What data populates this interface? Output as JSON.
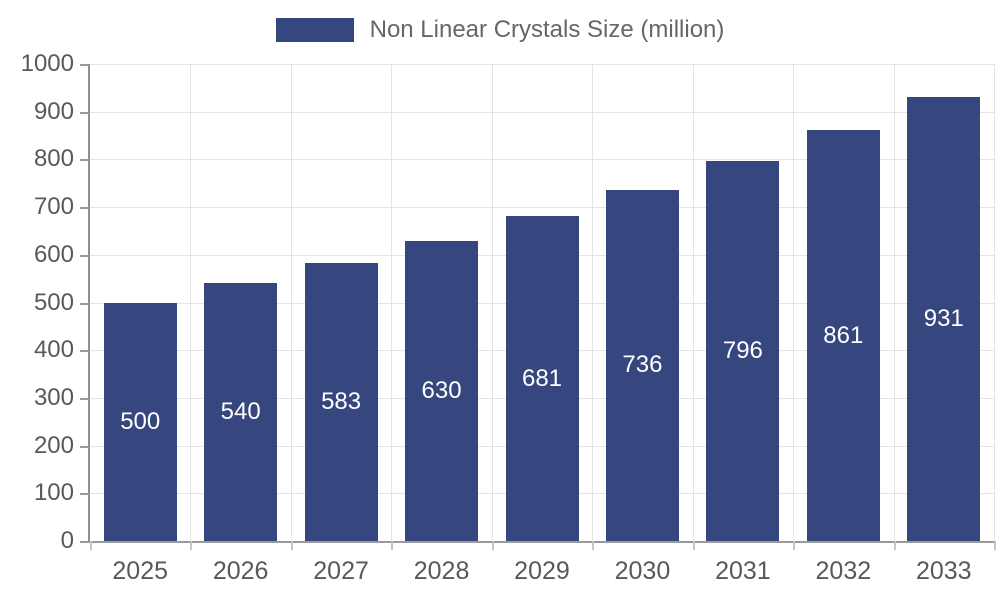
{
  "chart_data": {
    "type": "bar",
    "title": "Non Linear Crystals Size (million)",
    "legend_entries": [
      "Non Linear Crystals Size (million)"
    ],
    "legend_position": "top-center",
    "categories": [
      "2025",
      "2026",
      "2027",
      "2028",
      "2029",
      "2030",
      "2031",
      "2032",
      "2033"
    ],
    "series": [
      {
        "name": "Non Linear Crystals Size (million)",
        "values": [
          500,
          540,
          583,
          630,
          681,
          736,
          796,
          861,
          931
        ]
      }
    ],
    "bar_labels_visible": true,
    "xlabel": "",
    "ylabel": "",
    "ylim": [
      0,
      1000
    ],
    "y_ticks": [
      0,
      100,
      200,
      300,
      400,
      500,
      600,
      700,
      800,
      900,
      1000
    ],
    "grid": "horizontal-and-vertical",
    "colors": {
      "bar": "#35477E",
      "bar_label_text": "#FFFFFF",
      "legend_text": "#666666",
      "axis_text": "#595959",
      "gridline": "#E4E4E4",
      "axis_line": "#9A9A9A",
      "background": "#FFFFFF"
    }
  }
}
